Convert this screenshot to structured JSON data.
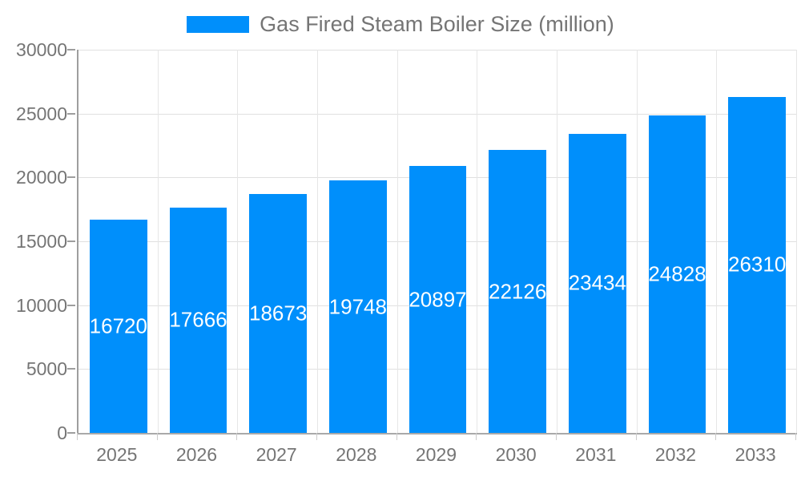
{
  "legend": {
    "label": "Gas Fired Steam Boiler Size (million)",
    "swatch_color": "#008FFB"
  },
  "chart_data": {
    "type": "bar",
    "title": "",
    "xlabel": "",
    "ylabel": "",
    "categories": [
      "2025",
      "2026",
      "2027",
      "2028",
      "2029",
      "2030",
      "2031",
      "2032",
      "2033"
    ],
    "series": [
      {
        "name": "Gas Fired Steam Boiler Size (million)",
        "values": [
          16720,
          17666,
          18673,
          19748,
          20897,
          22126,
          23434,
          24828,
          26310
        ]
      }
    ],
    "ylim": [
      0,
      30000
    ],
    "yticks": [
      0,
      5000,
      10000,
      15000,
      20000,
      25000,
      30000
    ],
    "grid": true,
    "legend_position": "top",
    "bar_color": "#008FFB",
    "bar_label_color": "#ffffff",
    "axis_text_color": "#757575",
    "gridline_color": "#e0e0e0",
    "axis_line_color": "#9e9e9e"
  }
}
